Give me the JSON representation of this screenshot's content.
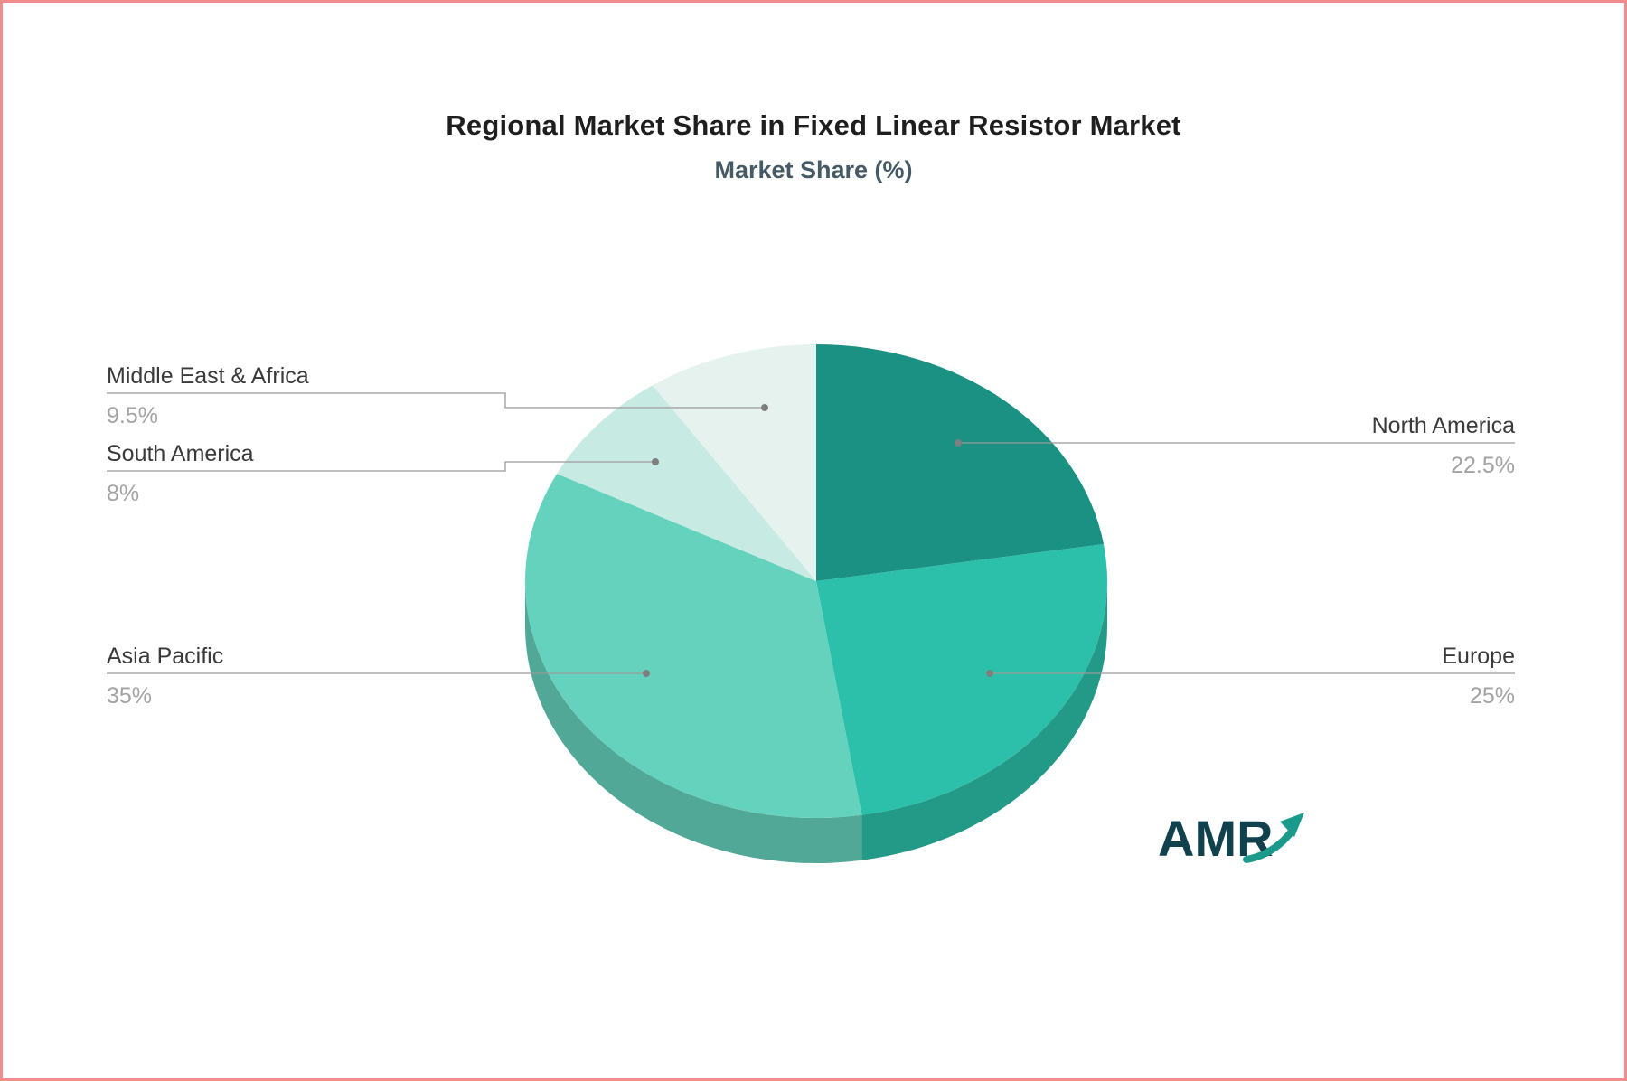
{
  "logo": {
    "text": "AMR"
  },
  "chart_data": {
    "type": "pie",
    "title": "Regional Market Share in Fixed Linear Resistor Market",
    "subtitle": "Market Share (%)",
    "unit": "%",
    "effect": "3d",
    "start_angle_deg": 0,
    "direction": "clockwise",
    "legend_position": "callouts",
    "labels": [
      "North America",
      "Europe",
      "Asia Pacific",
      "South America",
      "Middle East & Africa"
    ],
    "values": [
      22.5,
      25,
      35,
      8,
      9.5
    ],
    "display_values": [
      "22.5%",
      "25%",
      "35%",
      "8%",
      "9.5%"
    ],
    "colors": [
      "#1b9183",
      "#2cbfa9",
      "#65d2bd",
      "#c7ebe2",
      "#e6f2ee"
    ],
    "label_color": "#3a3a3a",
    "value_color": "#a3a3a3",
    "line_color": "#9b9b9b",
    "dot_color": "#7f7f7f"
  }
}
